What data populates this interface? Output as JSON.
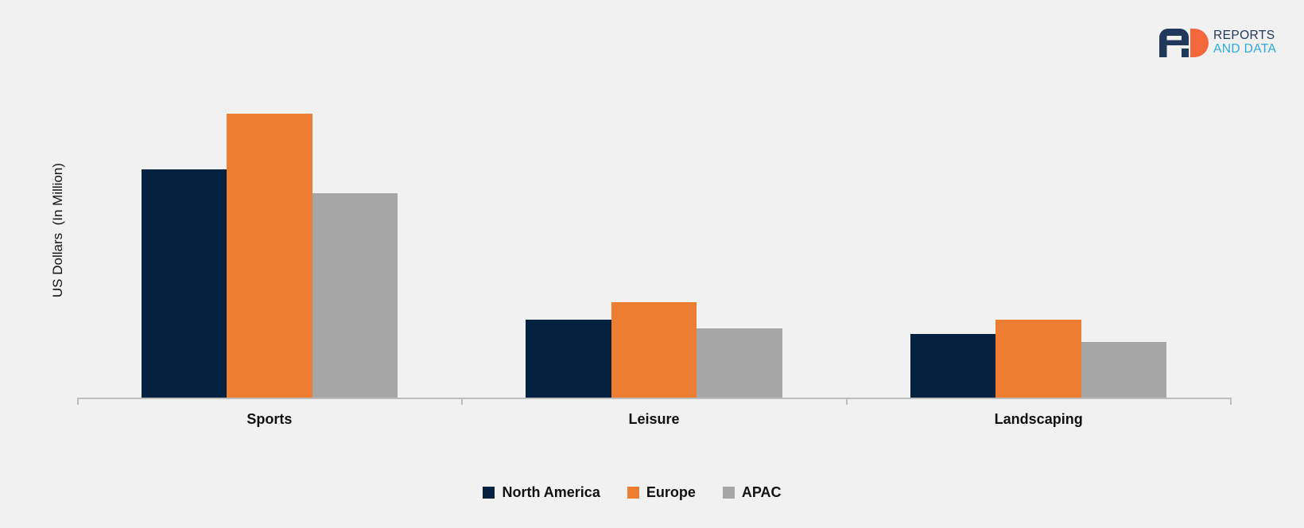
{
  "page": {
    "background_color": "#F1F1F1",
    "axis_line_color": "#BDBDBD",
    "text_color": "#111111"
  },
  "logo": {
    "line1": "REPORTS",
    "line2": "AND DATA",
    "mark_r_color": "#20395B",
    "mark_d_color": "#F4683C",
    "line1_color": "#20395B",
    "line2_color": "#29ABE2"
  },
  "chart_data": {
    "type": "bar",
    "title": "",
    "xlabel": "",
    "ylabel": "US Dollars  (In Million)",
    "categories": [
      "Sports",
      "Leisure",
      "Landscaping"
    ],
    "series": [
      {
        "name": "North America",
        "color": "#042140",
        "values": [
          287,
          98,
          80
        ]
      },
      {
        "name": "Europe",
        "color": "#ED7D31",
        "values": [
          357,
          120,
          98
        ]
      },
      {
        "name": "APAC",
        "color": "#A6A6A6",
        "values": [
          257,
          87,
          70
        ]
      }
    ],
    "ylim": [
      0,
      380
    ],
    "grid": false,
    "y_tick_labels_shown": false,
    "legend_position": "bottom"
  }
}
